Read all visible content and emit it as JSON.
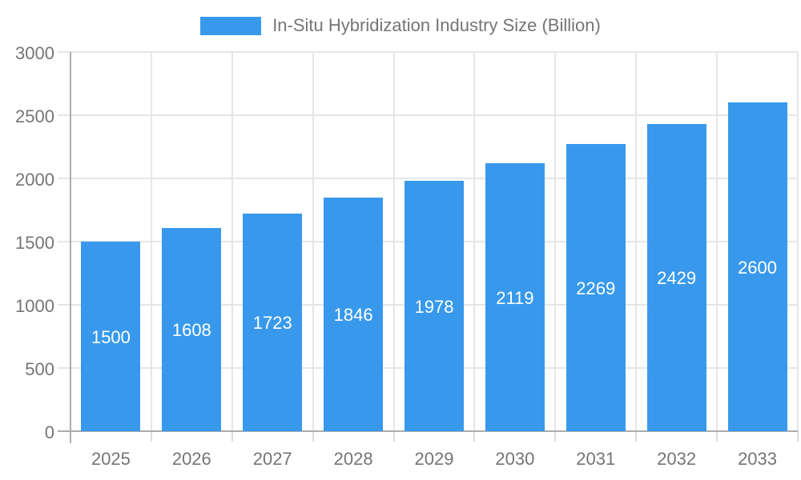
{
  "legend": {
    "label": "In-Situ Hybridization Industry Size (Billion)"
  },
  "chart_data": {
    "type": "bar",
    "title": "In-Situ Hybridization Industry Size (Billion)",
    "categories": [
      "2025",
      "2026",
      "2027",
      "2028",
      "2029",
      "2030",
      "2031",
      "2032",
      "2033"
    ],
    "values": [
      1500,
      1608,
      1723,
      1846,
      1978,
      2119,
      2269,
      2429,
      2600
    ],
    "xlabel": "",
    "ylabel": "",
    "ylim": [
      0,
      3000
    ],
    "ytick_step": 500,
    "ytick_labels": [
      "0",
      "500",
      "1000",
      "1500",
      "2000",
      "2500",
      "3000"
    ],
    "grid": true,
    "legend_position": "top",
    "value_labels": "inside-center"
  },
  "colors": {
    "bar": "#3899ec",
    "value_label": "#ffffff",
    "grid": "#e6e6e6",
    "axis": "#acacac",
    "text": "#757575",
    "background": "#ffffff"
  }
}
